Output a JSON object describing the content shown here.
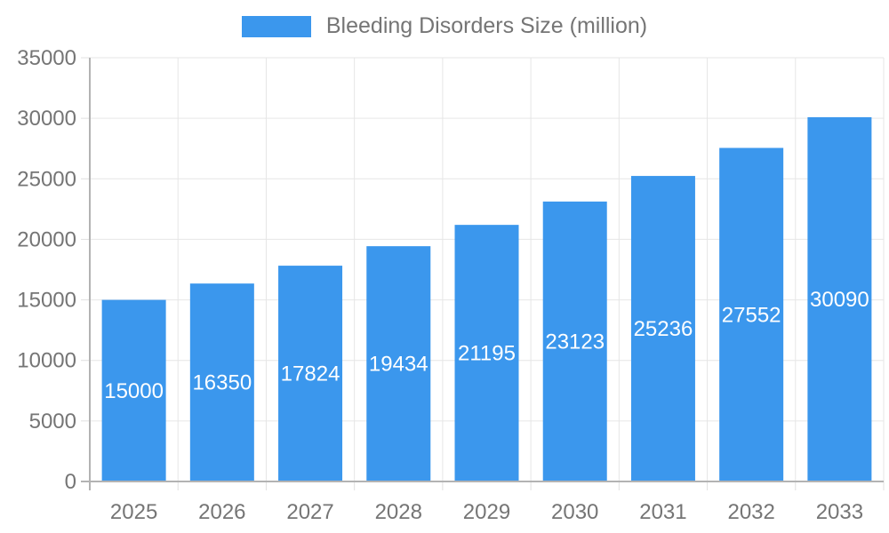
{
  "chart_data": {
    "type": "bar",
    "title": "Bleeding Disorders Size (million)",
    "categories": [
      "2025",
      "2026",
      "2027",
      "2028",
      "2029",
      "2030",
      "2031",
      "2032",
      "2033"
    ],
    "values": [
      15000,
      16350,
      17824,
      19434,
      21195,
      23123,
      25236,
      27552,
      30090
    ],
    "xlabel": "",
    "ylabel": "",
    "ylim": [
      0,
      35000
    ],
    "ytick_step": 5000,
    "yticks": [
      "0",
      "5000",
      "10000",
      "15000",
      "20000",
      "25000",
      "30000",
      "35000"
    ],
    "grid": "both",
    "legend_position": "top-center",
    "value_labels": "inside-vertical-center",
    "colors": {
      "bar": "#3B97ED",
      "grid": "#E6E6E6",
      "tick": "#E0E0E0",
      "axis": "#B3B3B3",
      "text": "#757575",
      "value_label": "#FFFFFF",
      "background": "#FFFFFF"
    }
  }
}
